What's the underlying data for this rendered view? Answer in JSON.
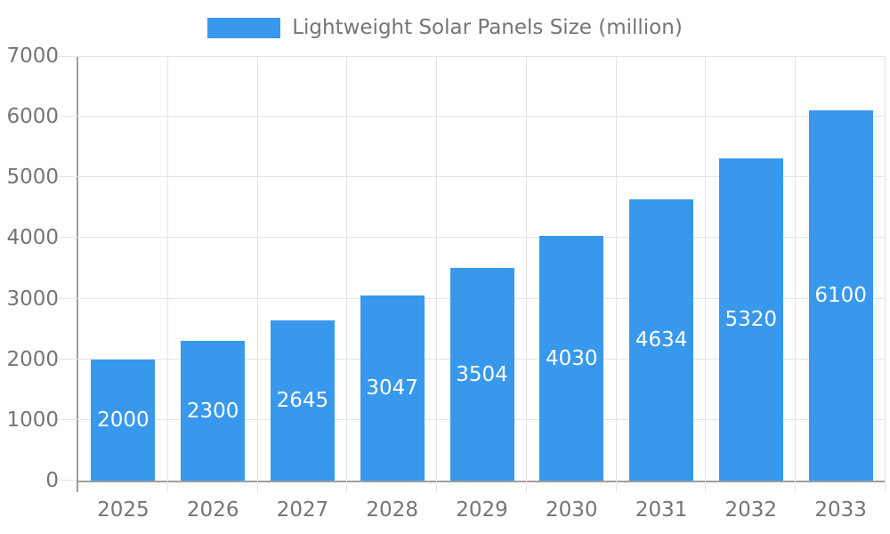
{
  "legend": {
    "label": "Lightweight Solar Panels Size (million)"
  },
  "colors": {
    "bar": "#3898EC",
    "axis_line": "#9e9e9e",
    "gridline": "#e4e4e4",
    "axis_text": "#757575",
    "value_text": "#ffffff",
    "background": "#ffffff"
  },
  "chart_data": {
    "type": "bar",
    "title": "Lightweight Solar Panels Size (million)",
    "categories": [
      "2025",
      "2026",
      "2027",
      "2028",
      "2029",
      "2030",
      "2031",
      "2032",
      "2033"
    ],
    "values": [
      2000,
      2300,
      2645,
      3047,
      3504,
      4030,
      4634,
      5320,
      6100
    ],
    "value_labels": [
      "2000",
      "2300",
      "2645",
      "3047",
      "3504",
      "4030",
      "4634",
      "5320",
      "6100"
    ],
    "ytick_labels": [
      "0",
      "1000",
      "2000",
      "3000",
      "4000",
      "5000",
      "6000",
      "7000"
    ],
    "xlabel": "",
    "ylabel": "",
    "ylim": [
      0,
      7000
    ],
    "ytick_step": 1000,
    "grid": true,
    "legend_position": "top-center",
    "value_label_position": "center-of-bar"
  }
}
